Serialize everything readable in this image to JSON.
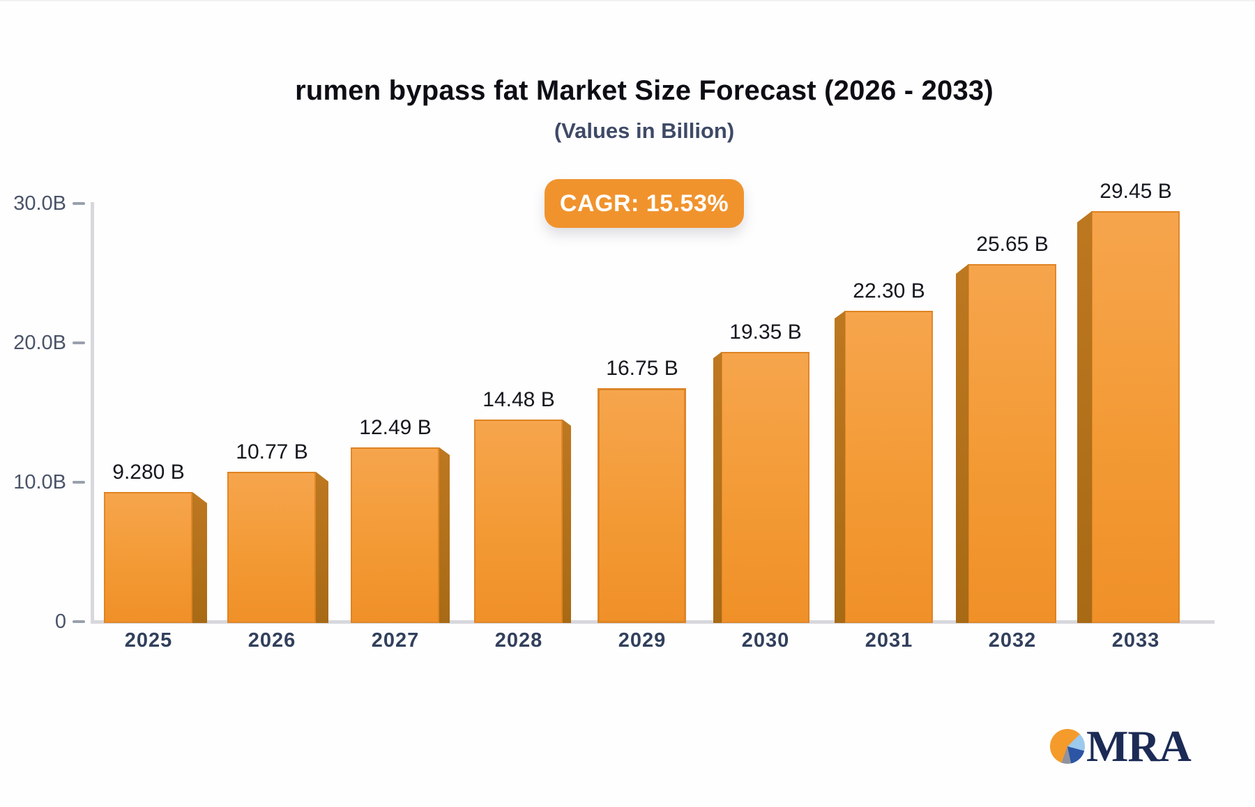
{
  "header": {
    "title": "rumen bypass fat Market Size Forecast (2026 - 2033)",
    "subtitle": "(Values in Billion)",
    "cagr_label": "CAGR: 15.53%"
  },
  "chart_data": {
    "type": "bar",
    "title": "rumen bypass fat Market Size Forecast (2026 - 2033)",
    "subtitle": "(Values in Billion)",
    "unit": "Billion",
    "cagr": "15.53%",
    "categories": [
      "2025",
      "2026",
      "2027",
      "2028",
      "2029",
      "2030",
      "2031",
      "2032",
      "2033"
    ],
    "values": [
      9.28,
      10.77,
      12.49,
      14.48,
      16.75,
      19.35,
      22.3,
      25.65,
      29.45
    ],
    "value_labels": [
      "9.280 B",
      "10.77 B",
      "12.49 B",
      "14.48 B",
      "16.75 B",
      "19.35 B",
      "22.30 B",
      "25.65 B",
      "29.45 B"
    ],
    "yticks": [
      {
        "label": "30.0B",
        "value": 30
      },
      {
        "label": "20.0B",
        "value": 20
      },
      {
        "label": "10.0B",
        "value": 10
      },
      {
        "label": "0",
        "value": 0
      }
    ],
    "ylim": [
      0,
      30
    ],
    "grid": false,
    "legend": false,
    "colors": {
      "bar_top": "#f6a54d",
      "bar_bottom": "#f09028",
      "bar_side": "#b0701b",
      "axis": "#d7d8dd",
      "badge": "#f0932d"
    }
  },
  "logo": {
    "text": "MRA",
    "icon": "pie-chart-icon",
    "colors": {
      "orange": "#f49b2c",
      "light_blue": "#9cc9ee",
      "dark_blue": "#2c55a5",
      "gray": "#90939e",
      "text": "#1c2b55"
    }
  }
}
